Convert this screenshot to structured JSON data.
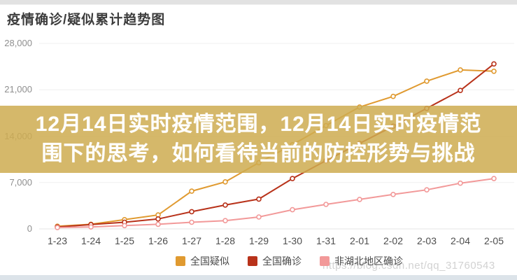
{
  "page": {
    "watermark": "https://blog.csdn.net/qq_31760543"
  },
  "overlay": {
    "line1": "12月14日实时疫情范围，12月14日实时疫情范",
    "line2": "围下的思考，如何看待当前的防控形势与挑战"
  },
  "chart_data": {
    "type": "line",
    "title": "疫情确诊/疑似累计趋势图",
    "xlabel": "",
    "ylabel": "",
    "ylim": [
      0,
      28000
    ],
    "grid": true,
    "legend_position": "bottom",
    "y_ticks": [
      {
        "label": "28,000",
        "value": 28000
      },
      {
        "label": "21,000",
        "value": 21000
      },
      {
        "label": "14,000",
        "value": 14000
      },
      {
        "label": "7,000",
        "value": 7000
      },
      {
        "label": "0",
        "value": 0
      }
    ],
    "categories": [
      "1-23",
      "1-24",
      "1-25",
      "1-26",
      "1-27",
      "1-28",
      "1-29",
      "1-30",
      "1-31",
      "2-01",
      "2-02",
      "2-03",
      "2-04",
      "2-05"
    ],
    "series": [
      {
        "key": "suspected",
        "name": "全国疑似",
        "color": "#E09A30",
        "values": [
          400,
          700,
          1400,
          2100,
          5700,
          7100,
          10000,
          12700,
          15600,
          18400,
          20000,
          22300,
          24000,
          23800
        ]
      },
      {
        "key": "confirmed",
        "name": "全国确诊",
        "color": "#B8321A",
        "values": [
          300,
          650,
          1000,
          1500,
          2600,
          3600,
          4500,
          7600,
          10300,
          12900,
          15500,
          18200,
          20900,
          24900
        ]
      },
      {
        "key": "non-hubei-confirmed",
        "name": "非湖北地区确诊",
        "color": "#F29999",
        "values": [
          200,
          300,
          500,
          700,
          1000,
          1250,
          1800,
          2900,
          3700,
          4450,
          5200,
          5900,
          6900,
          7600
        ]
      }
    ]
  }
}
